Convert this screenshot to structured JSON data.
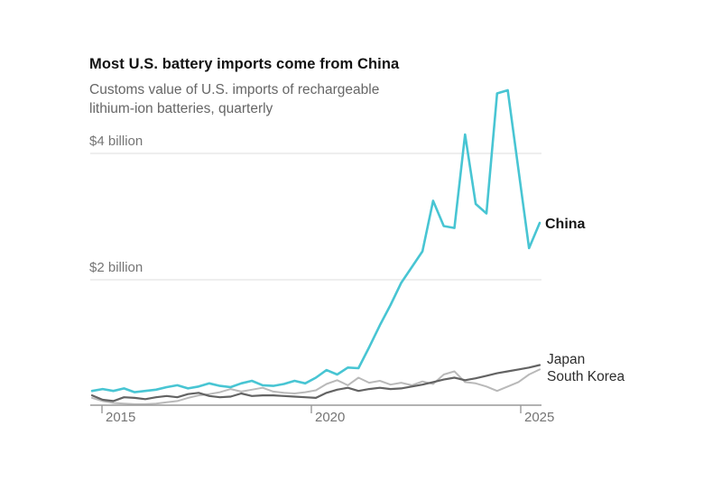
{
  "chart": {
    "title": "Most U.S. battery imports come from China",
    "subtitle_line1": "Customs value of U.S. imports of rechargeable",
    "subtitle_line2": "lithium-ion batteries, quarterly",
    "y_axis": {
      "label_4b": "$4 billion",
      "label_2b": "$2 billion"
    },
    "x_axis": {
      "tick_labels": [
        "2015",
        "2020",
        "2025"
      ]
    },
    "series_labels": {
      "china": "China",
      "japan": "Japan",
      "south_korea": "South Korea"
    }
  },
  "colors": {
    "china_line": "#48c5d3",
    "japan_line": "#636363",
    "south_korea_line": "#b9b9b9",
    "gridline": "#dedede",
    "axis": "#999999",
    "title_text": "#121212",
    "subtitle_text": "#666666",
    "tick_text": "#757575"
  },
  "chart_data": {
    "type": "line",
    "title": "Most U.S. battery imports come from China",
    "subtitle": "Customs value of U.S. imports of rechargeable lithium-ion batteries, quarterly",
    "unit": "billions of U.S. dollars",
    "frequency": "quarterly",
    "xlabel": "",
    "ylabel": "Customs value",
    "ylim": [
      0,
      5.2
    ],
    "y_gridlines_billions": [
      2,
      4
    ],
    "x_tick_labels": [
      "2015",
      "2020",
      "2025"
    ],
    "legend_position": "right-end-of-line",
    "grid": "horizontal-only",
    "x": [
      "2014 Q4",
      "2015 Q1",
      "2015 Q2",
      "2015 Q3",
      "2015 Q4",
      "2016 Q1",
      "2016 Q2",
      "2016 Q3",
      "2016 Q4",
      "2017 Q1",
      "2017 Q2",
      "2017 Q3",
      "2017 Q4",
      "2018 Q1",
      "2018 Q2",
      "2018 Q3",
      "2018 Q4",
      "2019 Q1",
      "2019 Q2",
      "2019 Q3",
      "2019 Q4",
      "2020 Q1",
      "2020 Q2",
      "2020 Q3",
      "2020 Q4",
      "2021 Q1",
      "2021 Q2",
      "2021 Q3",
      "2021 Q4",
      "2022 Q1",
      "2022 Q2",
      "2022 Q3",
      "2022 Q4",
      "2023 Q1",
      "2023 Q2",
      "2023 Q3",
      "2023 Q4",
      "2024 Q1",
      "2024 Q2",
      "2024 Q3",
      "2024 Q4",
      "2025 Q1",
      "2025 Q2"
    ],
    "series": [
      {
        "key": "south_korea",
        "name": "South Korea",
        "color": "#b9b9b9",
        "stroke_width": 2,
        "values": [
          0.13,
          0.08,
          0.05,
          0.04,
          0.03,
          0.03,
          0.04,
          0.06,
          0.08,
          0.13,
          0.17,
          0.19,
          0.22,
          0.27,
          0.23,
          0.26,
          0.29,
          0.23,
          0.21,
          0.2,
          0.22,
          0.25,
          0.35,
          0.41,
          0.33,
          0.45,
          0.37,
          0.4,
          0.34,
          0.37,
          0.33,
          0.39,
          0.35,
          0.5,
          0.55,
          0.38,
          0.36,
          0.31,
          0.24,
          0.31,
          0.38,
          0.5,
          0.58
        ]
      },
      {
        "key": "japan",
        "name": "Japan",
        "color": "#636363",
        "stroke_width": 2.2,
        "values": [
          0.17,
          0.1,
          0.08,
          0.14,
          0.13,
          0.11,
          0.14,
          0.16,
          0.14,
          0.19,
          0.21,
          0.16,
          0.14,
          0.15,
          0.2,
          0.16,
          0.17,
          0.17,
          0.16,
          0.15,
          0.14,
          0.13,
          0.21,
          0.26,
          0.29,
          0.24,
          0.27,
          0.29,
          0.27,
          0.28,
          0.31,
          0.34,
          0.38,
          0.42,
          0.45,
          0.41,
          0.44,
          0.48,
          0.52,
          0.55,
          0.58,
          0.61,
          0.65
        ]
      },
      {
        "key": "china",
        "name": "China",
        "color": "#48c5d3",
        "stroke_width": 2.6,
        "values": [
          0.24,
          0.27,
          0.24,
          0.28,
          0.22,
          0.24,
          0.26,
          0.3,
          0.33,
          0.28,
          0.31,
          0.36,
          0.32,
          0.3,
          0.36,
          0.4,
          0.33,
          0.32,
          0.35,
          0.4,
          0.36,
          0.45,
          0.57,
          0.5,
          0.61,
          0.6,
          0.93,
          1.28,
          1.6,
          1.95,
          2.2,
          2.45,
          3.25,
          2.85,
          2.82,
          4.3,
          3.2,
          3.05,
          4.95,
          5.0,
          3.75,
          2.5,
          2.9
        ]
      }
    ]
  }
}
